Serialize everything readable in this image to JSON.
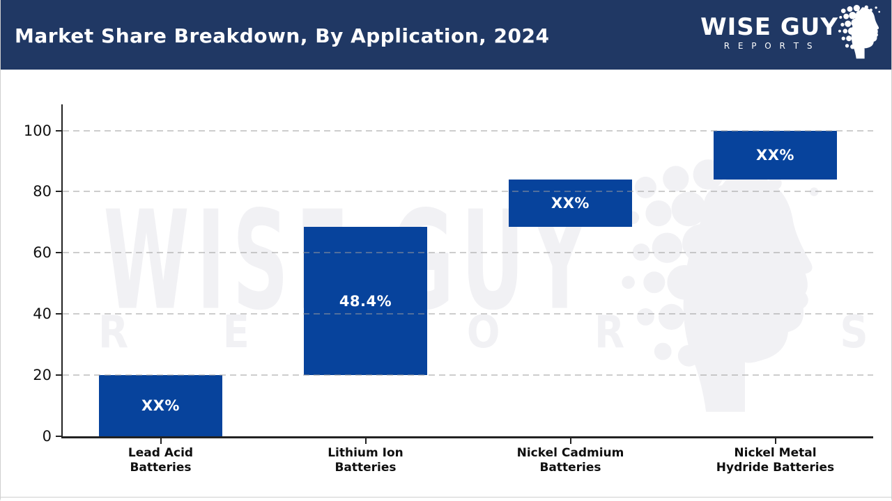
{
  "header": {
    "title": "Market Share Breakdown, By Application, 2024",
    "logo": {
      "wordmark": "WISE GUY",
      "subtext": "R E P O R T S"
    }
  },
  "watermark": {
    "wordmark": "WISE GUY",
    "subtext": "R E P O R T S"
  },
  "colors": {
    "header_bg": "#203864",
    "bar": "#07439c",
    "bar_label": "#ffffff",
    "axis": "#222222",
    "watermark": "#f1f1f4"
  },
  "chart_data": {
    "type": "bar",
    "subtype": "floating-breakdown-waterfall",
    "title": "Market Share Breakdown, By Application, 2024",
    "categories": [
      "Lead Acid Batteries",
      "Lithium Ion Batteries",
      "Nickel Cadmium Batteries",
      "Nickel Metal Hydride Batteries"
    ],
    "category_label_lines": [
      [
        "Lead Acid",
        "Batteries"
      ],
      [
        "Lithium Ion",
        "Batteries"
      ],
      [
        "Nickel Cadmium",
        "Batteries"
      ],
      [
        "Nickel Metal",
        "Hydride Batteries"
      ]
    ],
    "segments": [
      {
        "category": "Lead Acid Batteries",
        "start": 0,
        "end": 20,
        "label": "XX%"
      },
      {
        "category": "Lithium Ion Batteries",
        "start": 20,
        "end": 68.4,
        "label": "48.4%"
      },
      {
        "category": "Nickel Cadmium Batteries",
        "start": 68.4,
        "end": 84,
        "label": "XX%"
      },
      {
        "category": "Nickel Metal Hydride Batteries",
        "start": 84,
        "end": 100,
        "label": "XX%"
      }
    ],
    "xlabel": "",
    "ylabel": "",
    "ylim": [
      0,
      100
    ],
    "yticks": [
      0,
      20,
      40,
      60,
      80,
      100
    ],
    "grid": "horizontal-dashed",
    "legend": "none"
  }
}
